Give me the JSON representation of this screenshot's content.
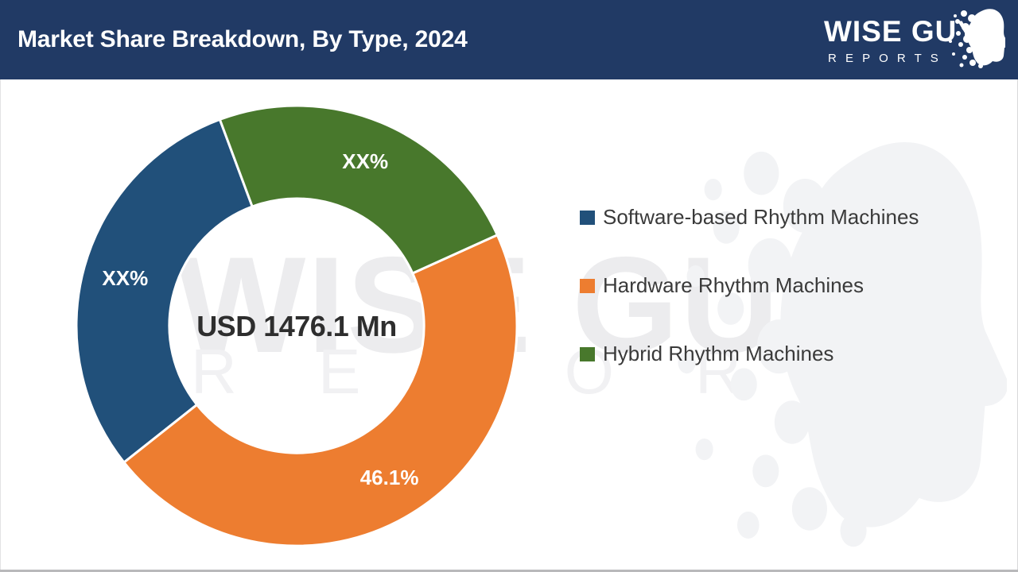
{
  "header": {
    "title": "Market Share Breakdown, By Type, 2024",
    "logo": {
      "line1": "WISE GUY",
      "line2": "R E P O R T S"
    }
  },
  "watermark": {
    "line1": "WISE GUY",
    "line2": "R E P O R T S"
  },
  "colors": {
    "header_bg": "#213A65",
    "software_blue": "#21507A",
    "hardware_orange": "#ED7D30",
    "hybrid_green": "#48782C",
    "legend_text": "#3A3A3A",
    "center_text": "#2E2E2E"
  },
  "chart_data": {
    "type": "pie",
    "subtype": "donut",
    "title": "Market Share Breakdown, By Type, 2024",
    "center_label": "USD 1476.1 Mn",
    "units": "percent of market share",
    "start_angle_deg": 110.4,
    "direction": "counterclockwise",
    "legend_position": "right",
    "series": [
      {
        "name": "Software-based Rhythm Machines",
        "value": 30.0,
        "display_label": "XX%",
        "color": "#21507A"
      },
      {
        "name": "Hardware Rhythm Machines",
        "value": 46.1,
        "display_label": "46.1%",
        "color": "#ED7D30"
      },
      {
        "name": "Hybrid Rhythm Machines",
        "value": 23.9,
        "display_label": "XX%",
        "color": "#48782C"
      }
    ]
  }
}
